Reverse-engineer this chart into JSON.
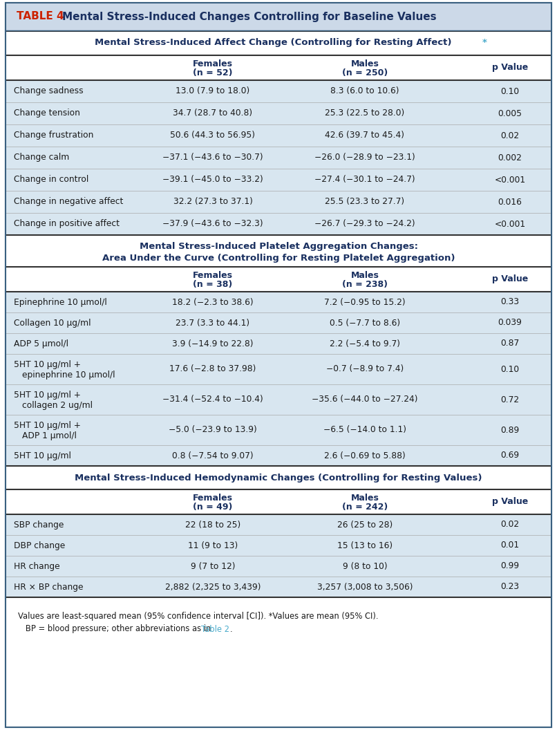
{
  "title_label": "TABLE 4",
  "title_text": "  Mental Stress-Induced Changes Controlling for Baseline Values",
  "title_bg": "#ccd9e8",
  "row_bg": "#d8e6f0",
  "white_bg": "#ffffff",
  "dark_blue": "#1a3060",
  "red_color": "#cc2200",
  "link_color": "#4aabcb",
  "border_color": "#3a6080",
  "line_color": "#444444",
  "text_color": "#1a1a1a",
  "section1_rows": [
    [
      "Change sadness",
      "13.0 (7.9 to 18.0)",
      "8.3 (6.0 to 10.6)",
      "0.10"
    ],
    [
      "Change tension",
      "34.7 (28.7 to 40.8)",
      "25.3 (22.5 to 28.0)",
      "0.005"
    ],
    [
      "Change frustration",
      "50.6 (44.3 to 56.95)",
      "42.6 (39.7 to 45.4)",
      "0.02"
    ],
    [
      "Change calm",
      "−37.1 (−43.6 to −30.7)",
      "−26.0 (−28.9 to −23.1)",
      "0.002"
    ],
    [
      "Change in control",
      "−39.1 (−45.0 to −33.2)",
      "−27.4 (−30.1 to −24.7)",
      "<0.001"
    ],
    [
      "Change in negative affect",
      "32.2 (27.3 to 37.1)",
      "25.5 (23.3 to 27.7)",
      "0.016"
    ],
    [
      "Change in positive affect",
      "−37.9 (−43.6 to −32.3)",
      "−26.7 (−29.3 to −24.2)",
      "<0.001"
    ]
  ],
  "section1_n_females": "(n = 52)",
  "section1_n_males": "(n = 250)",
  "section2_rows": [
    [
      "Epinephrine 10 μmol/l",
      "18.2 (−2.3 to 38.6)",
      "7.2 (−0.95 to 15.2)",
      "0.33"
    ],
    [
      "Collagen 10 μg/ml",
      "23.7 (3.3 to 44.1)",
      "0.5 (−7.7 to 8.6)",
      "0.039"
    ],
    [
      "ADP 5 μmol/l",
      "3.9 (−14.9 to 22.8)",
      "2.2 (−5.4 to 9.7)",
      "0.87"
    ],
    [
      "5HT 10 μg/ml +\nepinephrine 10 μmol/l",
      "17.6 (−2.8 to 37.98)",
      "−0.7 (−8.9 to 7.4)",
      "0.10"
    ],
    [
      "5HT 10 μg/ml +\ncollagen 2 ug/ml",
      "−31.4 (−52.4 to −10.4)",
      "−35.6 (−44.0 to −27.24)",
      "0.72"
    ],
    [
      "5HT 10 μg/ml +\nADP 1 μmol/l",
      "−5.0 (−23.9 to 13.9)",
      "−6.5 (−14.0 to 1.1)",
      "0.89"
    ],
    [
      "5HT 10 μg/ml",
      "0.8 (−7.54 to 9.07)",
      "2.6 (−0.69 to 5.88)",
      "0.69"
    ]
  ],
  "section2_n_females": "(n = 38)",
  "section2_n_males": "(n = 238)",
  "section3_rows": [
    [
      "SBP change",
      "22 (18 to 25)",
      "26 (25 to 28)",
      "0.02"
    ],
    [
      "DBP change",
      "11 (9 to 13)",
      "15 (13 to 16)",
      "0.01"
    ],
    [
      "HR change",
      "9 (7 to 12)",
      "9 (8 to 10)",
      "0.99"
    ],
    [
      "HR × BP change",
      "2,882 (2,325 to 3,439)",
      "3,257 (3,008 to 3,506)",
      "0.23"
    ]
  ],
  "section3_n_females": "(n = 49)",
  "section3_n_males": "(n = 242)"
}
